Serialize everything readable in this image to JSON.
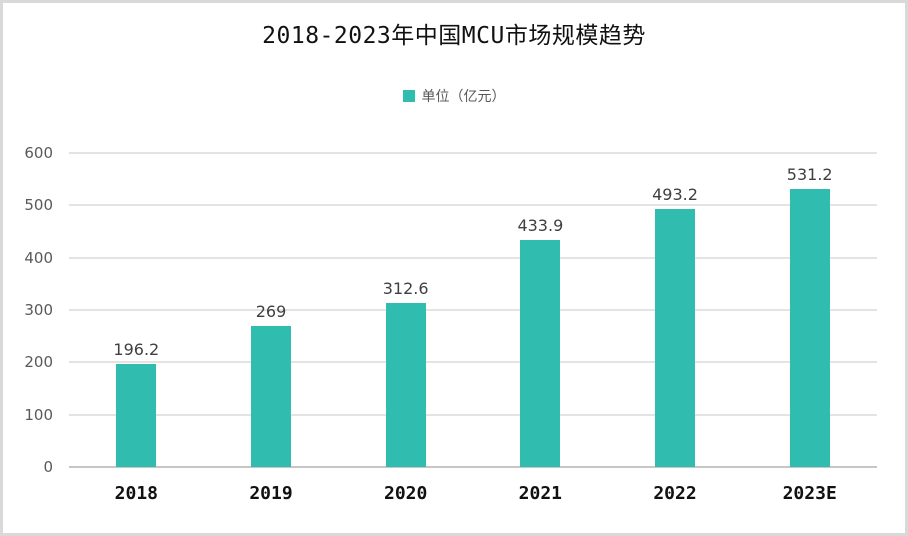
{
  "chart_data": {
    "type": "bar",
    "title": "2018-2023年中国MCU市场规模趋势",
    "legend": {
      "label": "单位（亿元）",
      "position": "top-center"
    },
    "categories": [
      "2018",
      "2019",
      "2020",
      "2021",
      "2022",
      "2023E"
    ],
    "values": [
      196.2,
      269,
      312.6,
      433.9,
      493.2,
      531.2
    ],
    "value_labels": [
      "196.2",
      "269",
      "312.6",
      "433.9",
      "493.2",
      "531.2"
    ],
    "xlabel": "",
    "ylabel": "",
    "ylim": [
      0,
      600
    ],
    "yticks": [
      0,
      100,
      200,
      300,
      400,
      500,
      600
    ],
    "grid": true,
    "legend_position": "top-center"
  },
  "colors": {
    "bar": "#30BCAE",
    "gridline": "#E3E3E3",
    "axis_line": "#C6C6C6",
    "tick_label": "#595959",
    "value_label": "#3F3F3F",
    "x_label": "#111111",
    "title": "#111111",
    "legend_text": "#595959",
    "frame_border": "#D9D9D9",
    "background": "#FFFFFF"
  }
}
